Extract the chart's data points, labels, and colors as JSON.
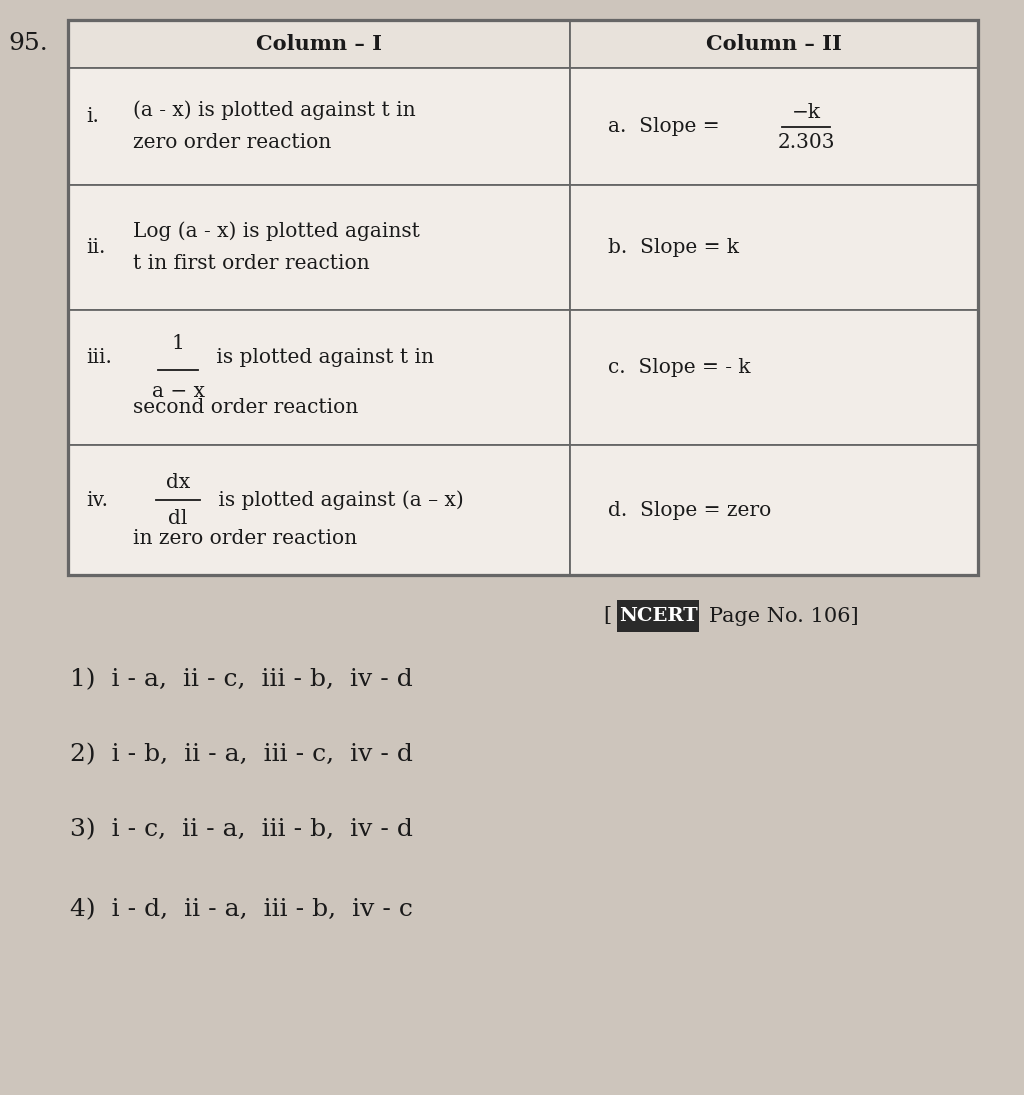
{
  "question_number": "95.",
  "bg_color": "#cdc5bc",
  "table_bg": "#f2ede8",
  "header_bg": "#e8e2db",
  "header_col1": "Column – I",
  "header_col2": "Column – II",
  "text_color": "#1a1a1a",
  "table_border_color": "#666666",
  "font_size_table": 14.5,
  "font_size_header": 15,
  "font_size_qnum": 18,
  "font_size_options": 18,
  "font_size_ncert": 14,
  "ncert_bg": "#2a2a2a",
  "options": [
    "1)  i - a,  ii - c,  iii - b,  iv - d",
    "2)  i - b,  ii - a,  iii - c,  iv - d",
    "3)  i - c,  ii - a,  iii - b,  iv - d",
    "4)  i - d,  ii - a,  iii - b,  iv - c"
  ]
}
